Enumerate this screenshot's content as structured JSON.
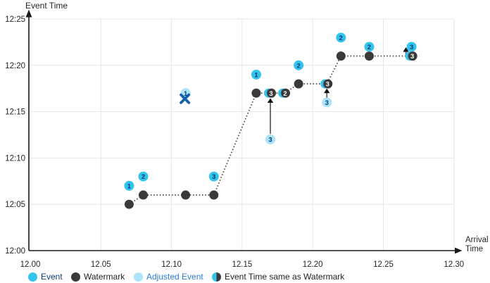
{
  "colors": {
    "event": "#33c4ee",
    "watermark": "#3b3a39",
    "adjusted": "#abe3f8",
    "half_left": "#33c4ee",
    "half_right": "#3b3a39",
    "x_marker": "#1263ab",
    "label_navy": "#0a3870",
    "label_white": "#ffffff",
    "grid": "#e6e6e6",
    "axis": "#1a1a1a",
    "text": "#252525",
    "dotted_line": "#4a4a4a",
    "arrow_stem": "#5a5a5a",
    "arrow_head": "#111111"
  },
  "chart_data": {
    "type": "scatter",
    "title": "",
    "xlabel": "Arrival Time",
    "ylabel": "Event Time",
    "xlim": [
      12.0,
      12.3
    ],
    "ylim": [
      "12:00",
      "12:25"
    ],
    "grid": true,
    "legend_position": "bottom",
    "x_ticks": [
      {
        "t": 12.0,
        "label": "12.00"
      },
      {
        "t": 12.05,
        "label": "12.05"
      },
      {
        "t": 12.1,
        "label": "12.10"
      },
      {
        "t": 12.15,
        "label": "12.15"
      },
      {
        "t": 12.2,
        "label": "12.20"
      },
      {
        "t": 12.25,
        "label": "12.25"
      },
      {
        "t": 12.3,
        "label": "12.30"
      }
    ],
    "y_ticks": [
      {
        "m": 0,
        "label": "12:00"
      },
      {
        "m": 5,
        "label": "12:05"
      },
      {
        "m": 10,
        "label": "12:10"
      },
      {
        "m": 15,
        "label": "12:15"
      },
      {
        "m": 20,
        "label": "12:20"
      },
      {
        "m": 25,
        "label": "12:25"
      }
    ],
    "series": [
      {
        "name": "Event",
        "marker": "event",
        "points": [
          {
            "arrival": 12.07,
            "event_time": "12:07",
            "label": "1"
          },
          {
            "arrival": 12.08,
            "event_time": "12:08",
            "label": "2"
          },
          {
            "arrival": 12.13,
            "event_time": "12:08",
            "label": "3"
          },
          {
            "arrival": 12.16,
            "event_time": "12:19",
            "label": "1"
          },
          {
            "arrival": 12.19,
            "event_time": "12:20",
            "label": "2"
          },
          {
            "arrival": 12.22,
            "event_time": "12:23",
            "label": "2"
          },
          {
            "arrival": 12.24,
            "event_time": "12:22",
            "label": "2"
          },
          {
            "arrival": 12.27,
            "event_time": "12:22",
            "label": "3"
          }
        ]
      },
      {
        "name": "Watermark",
        "marker": "watermark",
        "points": [
          {
            "arrival": 12.07,
            "event_time": "12:05"
          },
          {
            "arrival": 12.08,
            "event_time": "12:06"
          },
          {
            "arrival": 12.11,
            "event_time": "12:06"
          },
          {
            "arrival": 12.13,
            "event_time": "12:06"
          },
          {
            "arrival": 12.16,
            "event_time": "12:17"
          },
          {
            "arrival": 12.19,
            "event_time": "12:18"
          },
          {
            "arrival": 12.22,
            "event_time": "12:21"
          },
          {
            "arrival": 12.24,
            "event_time": "12:21"
          }
        ]
      },
      {
        "name": "Adjusted Event",
        "marker": "adjusted",
        "points": [
          {
            "arrival": 12.11,
            "event_time": "12:17",
            "label": "1",
            "dropped": true
          },
          {
            "arrival": 12.17,
            "event_time": "12:12",
            "label": "3"
          },
          {
            "arrival": 12.21,
            "event_time": "12:16",
            "label": "3"
          }
        ]
      },
      {
        "name": "Event Time same as Watermark",
        "marker": "half",
        "points": [
          {
            "arrival": 12.17,
            "event_time": "12:17",
            "label": "3"
          },
          {
            "arrival": 12.18,
            "event_time": "12:17",
            "label": "2"
          },
          {
            "arrival": 12.21,
            "event_time": "12:18",
            "label": "3"
          },
          {
            "arrival": 12.27,
            "event_time": "12:21",
            "label": "3"
          }
        ]
      }
    ],
    "watermark_path": [
      {
        "arrival": 12.07,
        "event_time": "12:05"
      },
      {
        "arrival": 12.08,
        "event_time": "12:06"
      },
      {
        "arrival": 12.11,
        "event_time": "12:06"
      },
      {
        "arrival": 12.13,
        "event_time": "12:06"
      },
      {
        "arrival": 12.16,
        "event_time": "12:17"
      },
      {
        "arrival": 12.18,
        "event_time": "12:17"
      },
      {
        "arrival": 12.19,
        "event_time": "12:18"
      },
      {
        "arrival": 12.21,
        "event_time": "12:18"
      },
      {
        "arrival": 12.22,
        "event_time": "12:21"
      },
      {
        "arrival": 12.27,
        "event_time": "12:21"
      }
    ],
    "arrows": [
      {
        "x": 12.17,
        "m_start": 12.6,
        "m_end": 16.45
      },
      {
        "x": 12.21,
        "m_start": 16.35,
        "m_end": 17.5
      },
      {
        "x": 12.266,
        "m_start": 21.1,
        "m_end": 21.95
      }
    ]
  },
  "legend": {
    "items": [
      {
        "label": "Event"
      },
      {
        "label": "Watermark"
      },
      {
        "label": "Adjusted Event"
      },
      {
        "label": "Event Time same as Watermark"
      }
    ]
  }
}
